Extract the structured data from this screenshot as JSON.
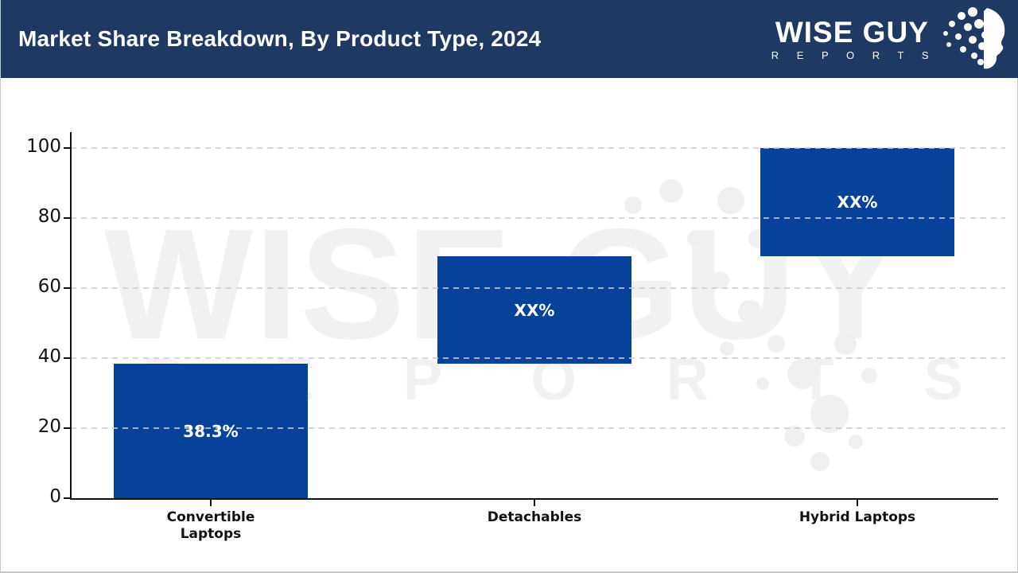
{
  "header": {
    "title": "Market Share Breakdown, By Product Type, 2024",
    "bg_color": "#1f3864",
    "logo": {
      "line1": "WISE GUY",
      "line2": "R E P O R T S"
    }
  },
  "watermark": {
    "line1": "WISE GUY",
    "line2": "R E P O R T S"
  },
  "chart_data": {
    "type": "bar",
    "subtype": "waterfall",
    "title": "Market Share Breakdown, By Product Type, 2024",
    "categories": [
      "Convertible\nLaptops",
      "Detachables",
      "Hybrid Laptops"
    ],
    "series": [
      {
        "name": "Market Share (%)",
        "segments": [
          {
            "category": "Convertible\nLaptops",
            "start": 0,
            "end": 38.3,
            "label": "38.3%"
          },
          {
            "category": "Detachables",
            "start": 38.3,
            "end": 69,
            "label": "XX%"
          },
          {
            "category": "Hybrid Laptops",
            "start": 69,
            "end": 100,
            "label": "XX%"
          }
        ]
      }
    ],
    "xlabel": "",
    "ylabel": "",
    "ylim": [
      0,
      105
    ],
    "yticks": [
      0,
      20,
      40,
      60,
      80,
      100
    ],
    "grid": "horizontal-dashed",
    "legend": "none",
    "bar_color": "#07429a",
    "bar_label_color": "#ffffff",
    "grid_color": "#cdcdcd",
    "axis_color": "#111111"
  }
}
